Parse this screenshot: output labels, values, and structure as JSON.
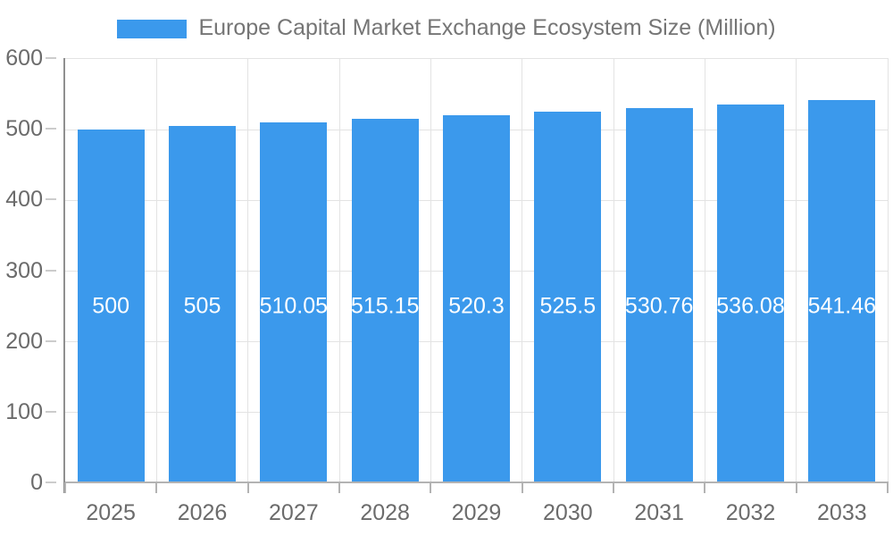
{
  "legend": {
    "title": "Europe Capital Market Exchange Ecosystem Size (Million)"
  },
  "chart_data": {
    "type": "bar",
    "title": "Europe Capital Market Exchange Ecosystem Size (Million)",
    "categories": [
      "2025",
      "2026",
      "2027",
      "2028",
      "2029",
      "2030",
      "2031",
      "2032",
      "2033"
    ],
    "values": [
      500,
      505,
      510.05,
      515.15,
      520.3,
      525.5,
      530.76,
      536.08,
      541.46
    ],
    "value_labels": [
      "500",
      "505",
      "510.05",
      "515.15",
      "520.3",
      "525.5",
      "530.76",
      "536.08",
      "541.46"
    ],
    "xlabel": "",
    "ylabel": "",
    "ylim": [
      0,
      600
    ],
    "yticks": [
      0,
      100,
      200,
      300,
      400,
      500,
      600
    ],
    "grid": true,
    "legend_position": "top",
    "value_label_position_value": 250
  },
  "colors": {
    "bar": "#3B99EC",
    "gridline": "#E3E3E3",
    "plot_border": "#E3E3E3",
    "y_axis": "#8F8F8F",
    "x_axis": "#B3B3B3",
    "y_tick": "#CCCCCC",
    "x_tick": "#B3B3B3",
    "axis_label": "#6B6B6B",
    "title": "#757575",
    "value_label": "#FFFFFF",
    "background": "#FFFFFF"
  }
}
